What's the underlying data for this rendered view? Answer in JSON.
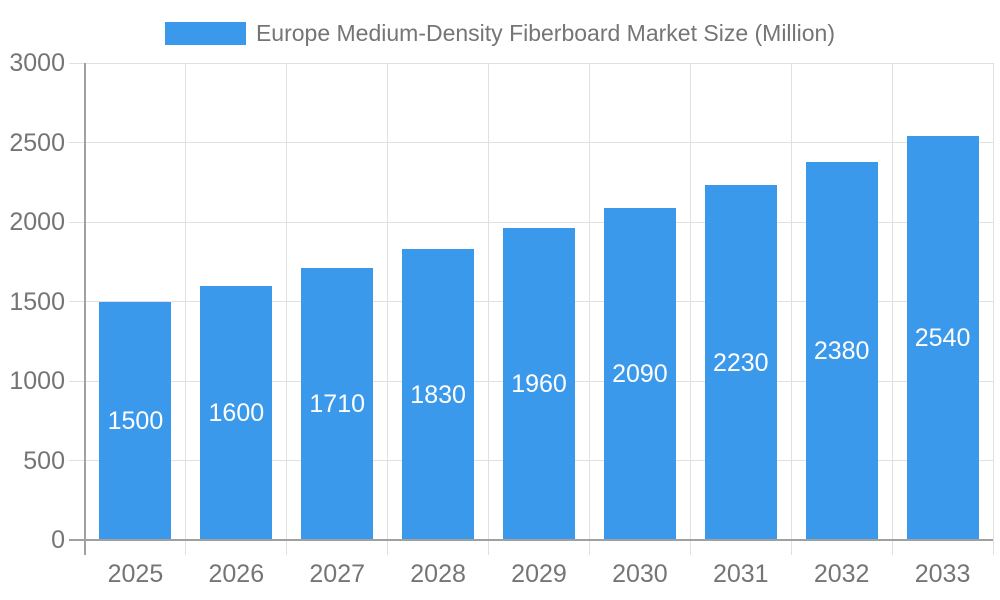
{
  "chart_data": {
    "type": "bar",
    "title": "Europe Medium-Density Fiberboard Market Size (Million)",
    "legend": {
      "position": "top",
      "label": "Europe Medium-Density Fiberboard Market Size (Million)"
    },
    "categories": [
      "2025",
      "2026",
      "2027",
      "2028",
      "2029",
      "2030",
      "2031",
      "2032",
      "2033"
    ],
    "values": [
      1500,
      1600,
      1710,
      1830,
      1960,
      2090,
      2230,
      2380,
      2540
    ],
    "value_labels_shown": true,
    "xlabel": "",
    "ylabel": "",
    "ylim": [
      0,
      3000
    ],
    "yticks": [
      0,
      500,
      1000,
      1500,
      2000,
      2500,
      3000
    ],
    "grid": true,
    "colors": {
      "bar": "#3b99ec",
      "value_label": "#ffffff",
      "axis_text": "#757575",
      "grid_line": "#e0e0e0",
      "axis_line": "#a0a0a0",
      "background": "#ffffff"
    }
  }
}
